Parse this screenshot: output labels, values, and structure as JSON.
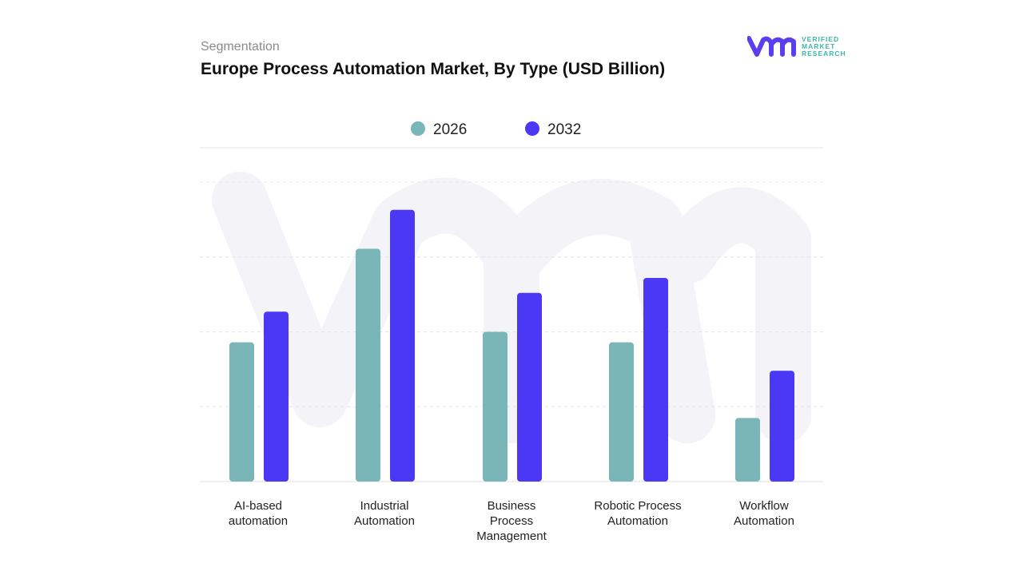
{
  "header": {
    "segment_label": "Segmentation",
    "title": "Europe Process Automation Market, By Type (USD Billion)"
  },
  "logo": {
    "text": [
      "VERIFIED",
      "MARKET",
      "RESEARCH"
    ],
    "brand_color": "#5a3ff0",
    "text_color": "#3cb7a8"
  },
  "chart_data": {
    "type": "bar",
    "title": "Europe Process Automation Market, By Type (USD Billion)",
    "categories": [
      "AI-based automation",
      "Industrial Automation",
      "Business Process Management",
      "Robotic Process Automation",
      "Workflow Automation"
    ],
    "category_lines": [
      [
        "AI-based",
        "automation"
      ],
      [
        "Industrial",
        "Automation"
      ],
      [
        "Business",
        "Process",
        "Management"
      ],
      [
        "Robotic Process",
        "Automation"
      ],
      [
        "Workflow",
        "Automation"
      ]
    ],
    "series": [
      {
        "name": "2026",
        "color": "#7ab5b8",
        "values": [
          1.86,
          3.11,
          2.0,
          1.86,
          0.85
        ]
      },
      {
        "name": "2032",
        "color": "#4b38f5",
        "values": [
          2.27,
          3.63,
          2.52,
          2.72,
          1.48
        ]
      }
    ],
    "ylim": [
      0,
      4
    ],
    "grid": true,
    "legend_position": "top-center",
    "xlabel": "",
    "ylabel": ""
  }
}
